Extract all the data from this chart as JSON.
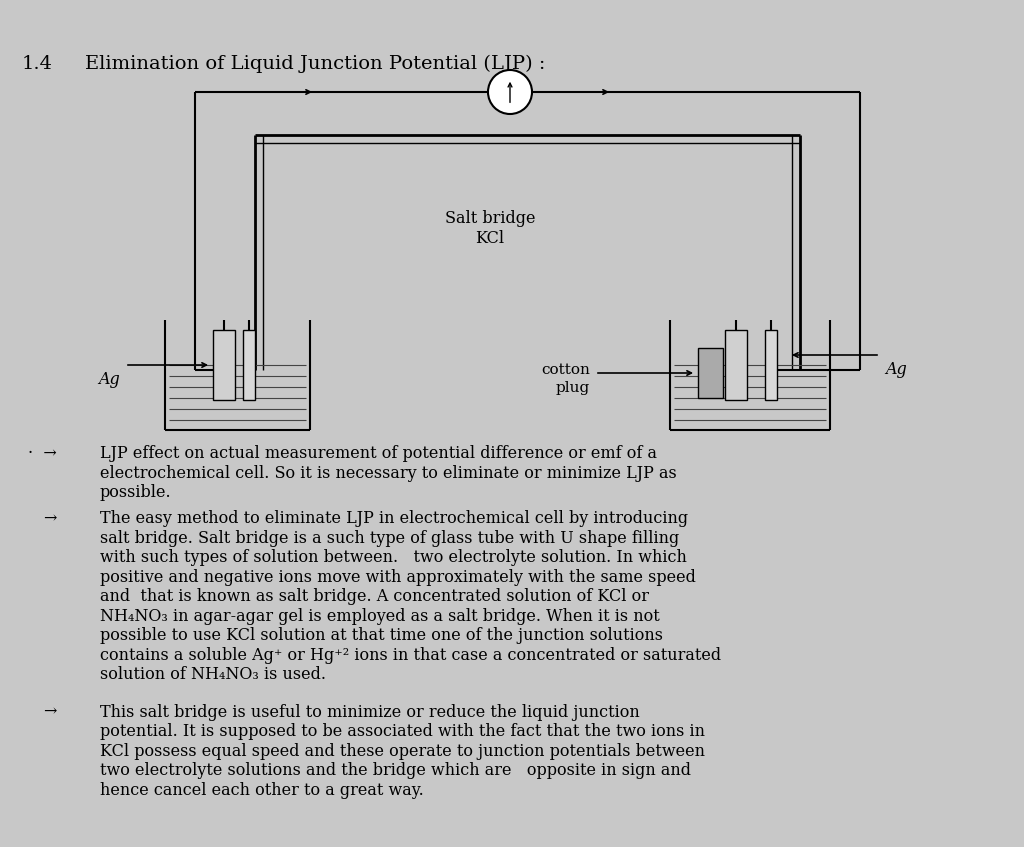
{
  "background_color": "#b8b8b8",
  "page_color": "#c8c8c8",
  "title_num": "1.4",
  "title_text": "Elimination of Liquid Junction Potential (LJP) :",
  "title_fontsize": 14,
  "body_fontsize": 11.5,
  "diagram_text": {
    "salt_bridge": "Salt bridge\nKCl",
    "ag_left": "Ag",
    "ag_right": "Ag",
    "cotton_plug": "cotton\nplug"
  },
  "bullet1_arrow": "·  →",
  "bullet1": "LJP effect on actual measurement of potential difference or emf of a\nelectrochemical cell. So it is necessary to eliminate or minimize LJP as\npossible.",
  "bullet2_arrow": "→",
  "bullet2_line1": "The easy method to eliminate LJP in electrochemical cell by introducing",
  "bullet2_line2": "salt bridge. Salt bridge is a such type of glass tube with U shape filling",
  "bullet2_line3": "with such types of solution between.   two electrolyte solution. In which",
  "bullet2_line4": "positive and negative ions move with approximately with the same speed",
  "bullet2_line5": "and  that is known as salt bridge. A concentrated solution of KCl or",
  "bullet2_line6": "NH₄NO₃ in agar-agar gel is employed as a salt bridge. When it is not",
  "bullet2_line7": "possible to use KCl solution at that time one of the junction solutions",
  "bullet2_line8": "contains a soluble Ag⁺ or Hg⁺² ions in that case a concentrated or saturated",
  "bullet2_line9": "solution of NH₄NO₃ is used.",
  "bullet3_arrow": "→",
  "bullet3_line1": "This salt bridge is useful to minimize or reduce the liquid junction",
  "bullet3_line2": "potential. It is supposed to be associated with the fact that the two ions in",
  "bullet3_line3": "KCl possess equal speed and these operate to junction potentials between",
  "bullet3_line4": "two electrolyte solutions and the bridge which are   opposite in sign and",
  "bullet3_line5": "hence cancel each other to a great way."
}
